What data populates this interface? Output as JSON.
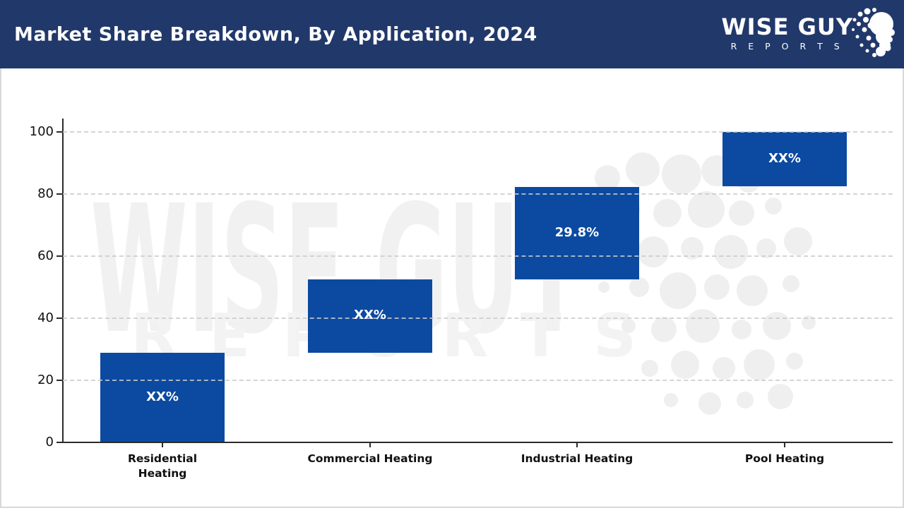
{
  "header": {
    "title": "Market Share Breakdown, By Application, 2024",
    "logo": {
      "line1": "WISE GUY",
      "line2": "R E P O R T S"
    }
  },
  "watermark": {
    "line1": "WISE GUY",
    "line2": "R E P O R T S"
  },
  "colors": {
    "header_bg": "#21386B",
    "bar": "#0B4AA0",
    "gridline": "#CBCBCB",
    "axis": "#2B2B2B",
    "watermark": "#F1F1F1"
  },
  "chart_data": {
    "type": "bar",
    "subtype": "waterfall-floating-bars",
    "title": "Market Share Breakdown, By Application, 2024",
    "categories": [
      "Residential\nHeating",
      "Commercial Heating",
      "Industrial Heating",
      "Pool Heating"
    ],
    "segments": [
      {
        "category": "Residential Heating",
        "start": 0,
        "end": 28.8,
        "label": "XX%"
      },
      {
        "category": "Commercial Heating",
        "start": 28.8,
        "end": 52.4,
        "label": "XX%"
      },
      {
        "category": "Industrial Heating",
        "start": 52.4,
        "end": 82.2,
        "label": "29.8%"
      },
      {
        "category": "Pool Heating",
        "start": 82.4,
        "end": 100,
        "label": "XX%"
      }
    ],
    "yticks": [
      0,
      20,
      40,
      60,
      80,
      100
    ],
    "ylim": [
      0,
      104
    ],
    "xlabel": "",
    "ylabel": "",
    "grid": "horizontal-dashed",
    "legend": "none",
    "bar_color": "#0B4AA0"
  }
}
